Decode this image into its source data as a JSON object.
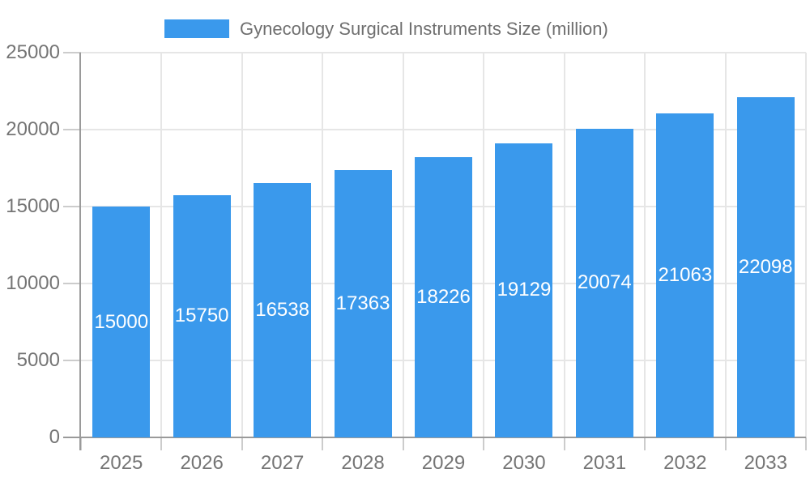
{
  "chart_data": {
    "type": "bar",
    "title": "Gynecology Surgical Instruments Size (million)",
    "legend": {
      "position": "top",
      "entries": [
        "Gynecology Surgical Instruments Size (million)"
      ]
    },
    "categories": [
      "2025",
      "2026",
      "2027",
      "2028",
      "2029",
      "2030",
      "2031",
      "2032",
      "2033"
    ],
    "values": [
      15000,
      15750,
      16538,
      17363,
      18226,
      19129,
      20074,
      21063,
      22098
    ],
    "value_labels_shown": true,
    "xlabel": "",
    "ylabel": "",
    "ylim": [
      0,
      25000
    ],
    "yticks": [
      0,
      5000,
      10000,
      15000,
      20000,
      25000
    ],
    "grid": true,
    "colors": {
      "bar": "#3A99EC",
      "value_label": "#FFFFFF",
      "axis_label": "#757575",
      "legend_text": "#6F6F6F",
      "gridline": "#E6E6E6",
      "axis_line": "#9A9A9A",
      "tick_mark": "#CCCCCC",
      "background": "#FFFFFF"
    }
  }
}
